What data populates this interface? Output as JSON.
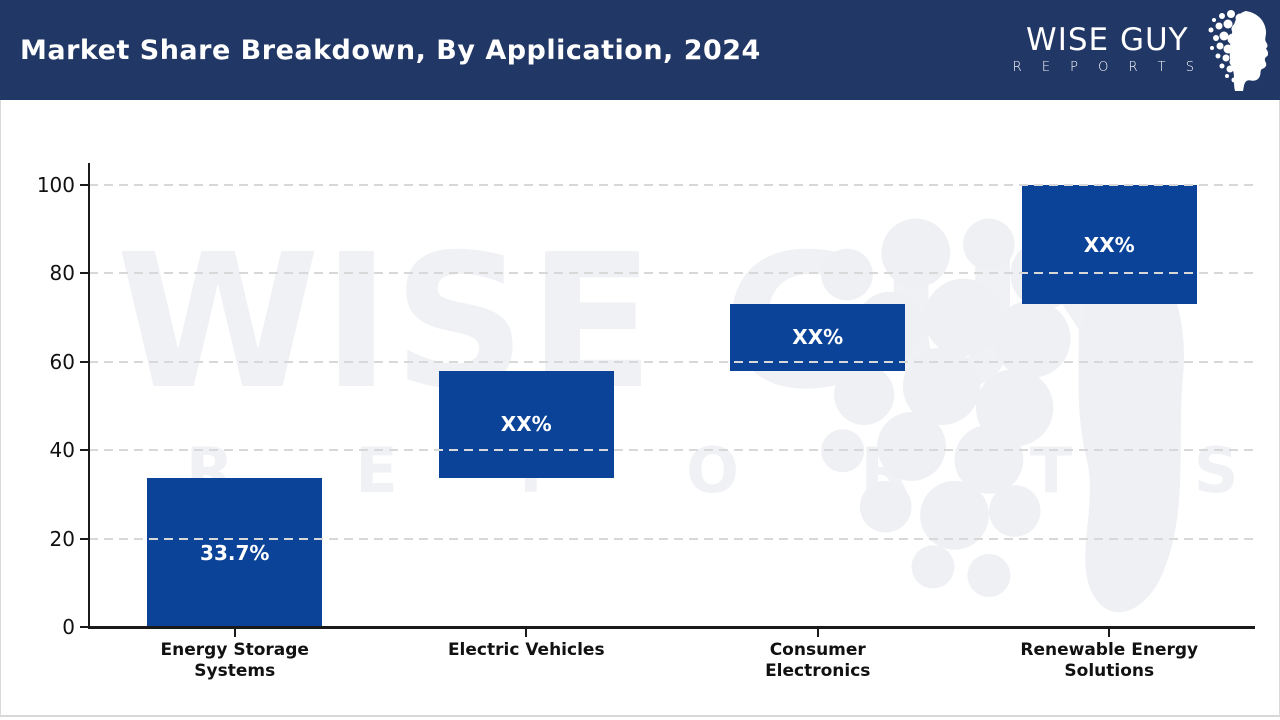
{
  "header": {
    "title": "Market Share Breakdown, By Application, 2024",
    "logo": {
      "line1": "WISE GUY",
      "line2": "R E P O R T S"
    }
  },
  "watermark": {
    "line1": "WISE GUY",
    "line2": "R E P O R T S"
  },
  "chart_data": {
    "type": "bar",
    "subtype": "waterfall",
    "title": "Market Share Breakdown, By Application, 2024",
    "categories": [
      "Energy Storage\nSystems",
      "Electric Vehicles",
      "Consumer\nElectronics",
      "Renewable Energy\nSolutions"
    ],
    "segments": [
      {
        "category": "Energy Storage Systems",
        "start": 0,
        "end": 33.7,
        "label": "33.7%"
      },
      {
        "category": "Electric Vehicles",
        "start": 33.7,
        "end": 58,
        "label": "XX%"
      },
      {
        "category": "Consumer Electronics",
        "start": 58,
        "end": 73,
        "label": "XX%"
      },
      {
        "category": "Renewable Energy Solutions",
        "start": 73,
        "end": 100,
        "label": "XX%"
      }
    ],
    "yticks": [
      0,
      20,
      40,
      60,
      80,
      100
    ],
    "ylim": [
      0,
      105
    ],
    "xlabel": "",
    "ylabel": "",
    "grid": "horizontal-dashed",
    "legend": "none",
    "bar_color": "#0b4398",
    "bar_label_color": "#ffffff",
    "axis_color": "#1a1a1a",
    "gridline_color": "#d8d8d8",
    "header_color": "#213765",
    "watermark_color": "#f0f1f4"
  }
}
